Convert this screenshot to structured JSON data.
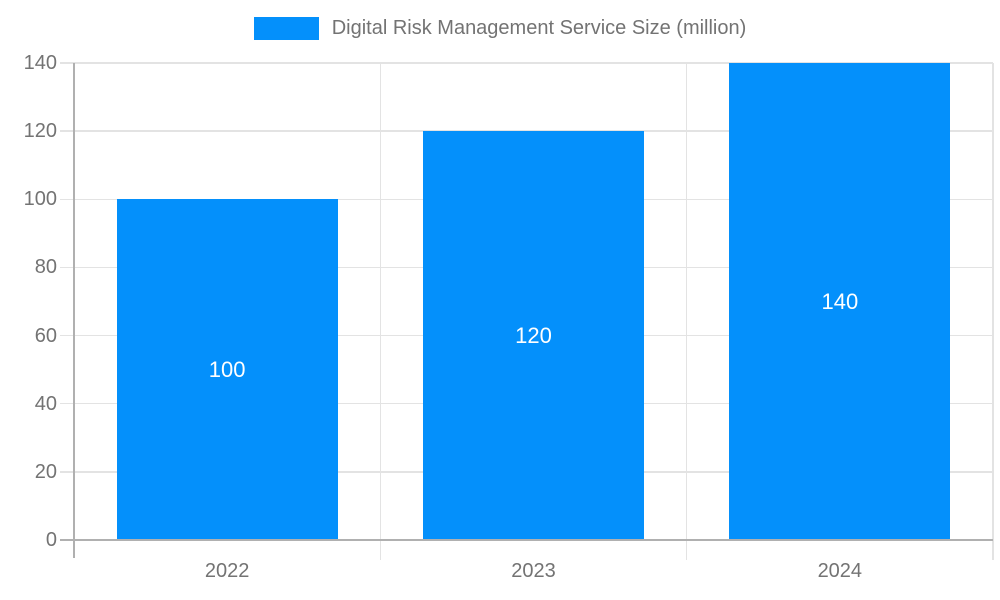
{
  "chart_data": {
    "type": "bar",
    "title": "Digital Risk Management Service Size (million)",
    "series": [
      {
        "name": "Digital Risk Management Service Size (million)",
        "values": [
          100,
          120,
          140
        ]
      }
    ],
    "categories": [
      "2022",
      "2023",
      "2024"
    ],
    "bar_labels": [
      "100",
      "120",
      "140"
    ],
    "xlabel": "",
    "ylabel": "",
    "ylim": [
      0,
      140
    ],
    "yticks": [
      0,
      20,
      40,
      60,
      80,
      100,
      120,
      140
    ],
    "grid": "on",
    "legend_position": "top-center",
    "colors": {
      "bar": "#0490fb",
      "axis_line": "#b0b0b0",
      "grid_line": "#e3e3e3",
      "axis_text": "#737373",
      "value_label_text": "#ffffff",
      "background": "#ffffff"
    }
  }
}
